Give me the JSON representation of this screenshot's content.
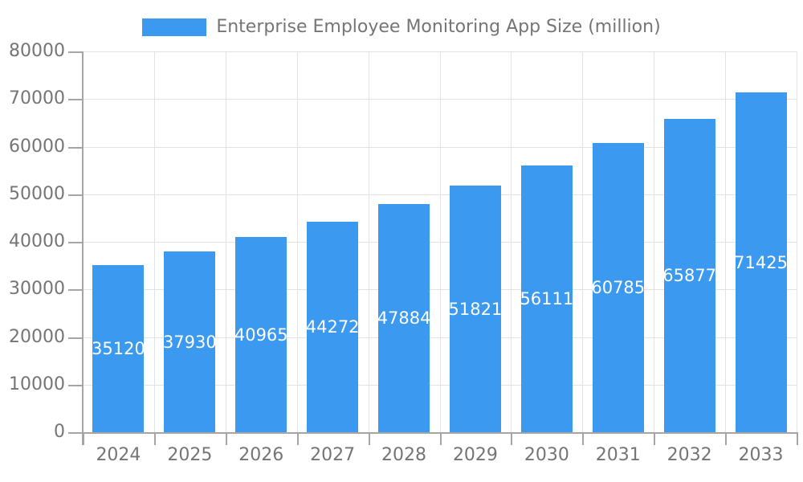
{
  "legend": {
    "label": "Enterprise Employee Monitoring App Size (million)"
  },
  "colors": {
    "bar": "#3b99ef",
    "grid": "#e3e3e3",
    "axis": "#a5a5a5",
    "text": "#757575",
    "value_label": "#ffffff",
    "background": "#ffffff"
  },
  "chart_data": {
    "type": "bar",
    "title": "Enterprise Employee Monitoring App Size (million)",
    "categories": [
      "2024",
      "2025",
      "2026",
      "2027",
      "2028",
      "2029",
      "2030",
      "2031",
      "2032",
      "2033"
    ],
    "values": [
      35120,
      37930,
      40965,
      44272,
      47884,
      51821,
      56111,
      60785,
      65877,
      71425
    ],
    "value_labels": [
      "35120",
      "37930",
      "40965",
      "44272",
      "47884",
      "51821",
      "56111",
      "60785",
      "65877",
      "71425"
    ],
    "xlabel": "",
    "ylabel": "",
    "ylim": [
      0,
      80000
    ],
    "ytick_step": 10000,
    "ytick_labels": [
      "0",
      "10000",
      "20000",
      "30000",
      "40000",
      "50000",
      "60000",
      "70000",
      "80000"
    ],
    "grid": true,
    "legend_position": "top",
    "value_labels_inside_bars": true
  }
}
